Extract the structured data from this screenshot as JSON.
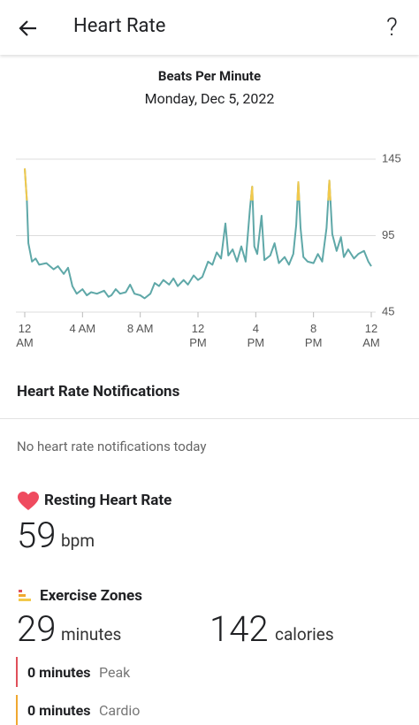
{
  "header": {
    "title": "Heart Rate",
    "help": "?"
  },
  "chart_data": {
    "type": "line",
    "title": "Beats Per Minute",
    "subtitle": "Monday, Dec 5, 2022",
    "x": [
      0,
      0.15,
      0.25,
      0.5,
      0.75,
      1.0,
      1.5,
      2.0,
      2.3,
      2.7,
      3.0,
      3.3,
      3.6,
      4.0,
      4.3,
      4.6,
      5.0,
      5.5,
      5.8,
      6.0,
      6.3,
      6.6,
      7.0,
      7.3,
      7.6,
      8.0,
      8.3,
      8.7,
      9.0,
      9.3,
      9.6,
      10.0,
      10.3,
      10.6,
      11.0,
      11.3,
      11.7,
      12.0,
      12.3,
      12.7,
      13.0,
      13.3,
      13.6,
      13.9,
      14.1,
      14.4,
      14.7,
      15.0,
      15.3,
      15.6,
      15.75,
      15.9,
      16.1,
      16.4,
      16.6,
      17.0,
      17.3,
      17.6,
      18.0,
      18.3,
      18.6,
      18.8,
      18.95,
      19.1,
      19.3,
      19.6,
      20.0,
      20.3,
      20.6,
      20.9,
      21.1,
      21.3,
      21.6,
      21.9,
      22.1,
      22.4,
      22.8,
      23.1,
      23.5,
      23.8,
      24.0
    ],
    "values": [
      139,
      118,
      90,
      78,
      80,
      76,
      77,
      73,
      75,
      70,
      74,
      62,
      57,
      60,
      56,
      58,
      57,
      59,
      55,
      56,
      60,
      57,
      58,
      63,
      57,
      56,
      54,
      57,
      64,
      62,
      66,
      63,
      67,
      62,
      66,
      63,
      69,
      66,
      68,
      78,
      76,
      84,
      80,
      103,
      82,
      86,
      78,
      88,
      78,
      113,
      127,
      88,
      83,
      108,
      79,
      82,
      90,
      77,
      81,
      76,
      83,
      102,
      130,
      100,
      81,
      78,
      77,
      83,
      78,
      100,
      131,
      96,
      85,
      94,
      81,
      86,
      80,
      83,
      85,
      78,
      75
    ],
    "color": "#5fa8a8",
    "highlight": {
      "color": "#f2c94c",
      "above": 118
    },
    "xlim": [
      0,
      24
    ],
    "xticks": [
      {
        "value": 0,
        "label": "12 AM"
      },
      {
        "value": 4,
        "label": "4 AM"
      },
      {
        "value": 8,
        "label": "8 AM"
      },
      {
        "value": 12,
        "label": "12 PM"
      },
      {
        "value": 16,
        "label": "4 PM"
      },
      {
        "value": 20,
        "label": "8 PM"
      },
      {
        "value": 24,
        "label": "12 AM"
      }
    ],
    "ylim": [
      45,
      145
    ],
    "yticks": [
      45,
      95,
      145
    ],
    "grid": true
  },
  "notifications": {
    "title": "Heart Rate Notifications",
    "message": "No heart rate notifications today"
  },
  "resting": {
    "title": "Resting Heart Rate",
    "value": 59,
    "unit": "bpm"
  },
  "exercise": {
    "title": "Exercise Zones",
    "minutes": 29,
    "minutes_unit": "minutes",
    "calories": 142,
    "calories_unit": "calories",
    "zones": [
      {
        "amount": "0 minutes",
        "name": "Peak",
        "color": "#e0505a"
      },
      {
        "amount": "0 minutes",
        "name": "Cardio",
        "color": "#f0a830"
      }
    ]
  }
}
